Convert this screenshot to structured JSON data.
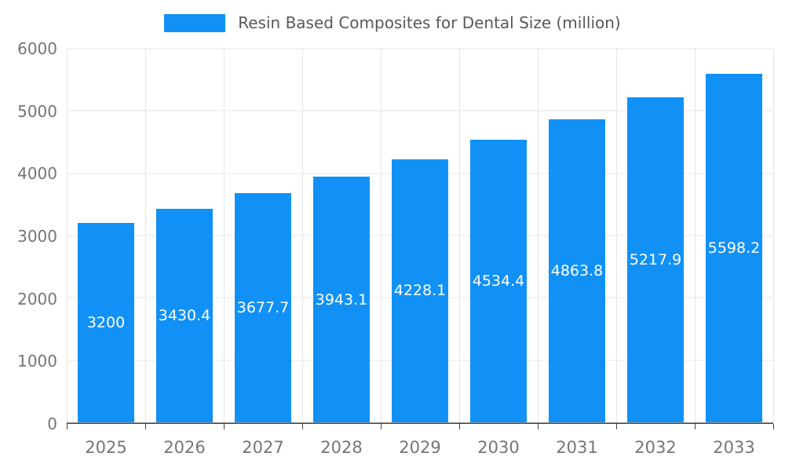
{
  "chart_data": {
    "type": "bar",
    "title": "Resin Based Composites for Dental Size (million)",
    "categories": [
      "2025",
      "2026",
      "2027",
      "2028",
      "2029",
      "2030",
      "2031",
      "2032",
      "2033"
    ],
    "values": [
      3200,
      3430.4,
      3677.7,
      3943.1,
      4228.1,
      4534.4,
      4863.8,
      5217.9,
      5598.2
    ],
    "value_labels": [
      "3200",
      "3430.4",
      "3677.7",
      "3943.1",
      "4228.1",
      "4534.4",
      "4863.8",
      "5217.9",
      "5598.2"
    ],
    "xlabel": "",
    "ylabel": "",
    "ylim": [
      0,
      6000
    ],
    "yticks": [
      0,
      1000,
      2000,
      3000,
      4000,
      5000,
      6000
    ],
    "grid": true,
    "legend_position": "top-center",
    "bar_color": "#1191f5",
    "value_label_color": "#ffffff",
    "axis_text_color": "#757575",
    "grid_color": "#e5e5e5",
    "axis_line_color": "#424242",
    "background": "#ffffff"
  }
}
